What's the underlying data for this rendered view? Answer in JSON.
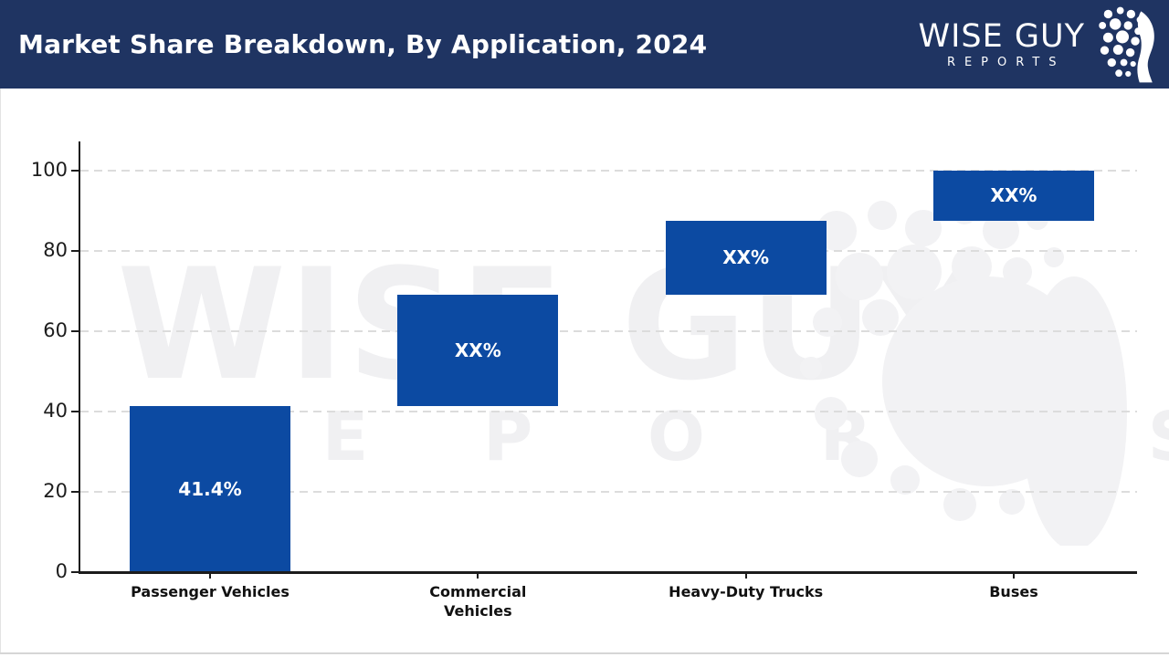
{
  "header": {
    "title": "Market Share Breakdown, By Application, 2024",
    "bg_color": "#1F3462",
    "logo_primary": "WISE GUY",
    "logo_secondary": "REPORTS"
  },
  "watermark": {
    "line1": "WISE GUY",
    "line2": "R E P O R T S"
  },
  "chart_data": {
    "type": "bar",
    "variant": "waterfall",
    "title": "Market Share Breakdown, By Application, 2024",
    "categories": [
      "Passenger Vehicles",
      "Commercial\nVehicles",
      "Heavy-Duty Trucks",
      "Buses"
    ],
    "segments": [
      {
        "category": "Passenger Vehicles",
        "start": 0,
        "end": 41.4,
        "label": "41.4%"
      },
      {
        "category": "Commercial\nVehicles",
        "start": 41.4,
        "end": 69.1,
        "label": "XX%"
      },
      {
        "category": "Heavy-Duty Trucks",
        "start": 69.1,
        "end": 87.6,
        "label": "XX%"
      },
      {
        "category": "Buses",
        "start": 87.6,
        "end": 100,
        "label": "XX%"
      }
    ],
    "bar_labels": [
      "41.4%",
      "XX%",
      "XX%",
      "XX%"
    ],
    "yticks": [
      0,
      20,
      40,
      60,
      80,
      100
    ],
    "ylim": [
      0,
      107
    ],
    "xlabel": "",
    "ylabel": "",
    "bar_color": "#0C4AA2",
    "bar_label_color": "#ffffff",
    "grid": {
      "horizontal": true,
      "style": "dashed",
      "color": "#dcdcdc"
    },
    "legend": null,
    "watermark_text": "WISE GUY REPORTS"
  }
}
